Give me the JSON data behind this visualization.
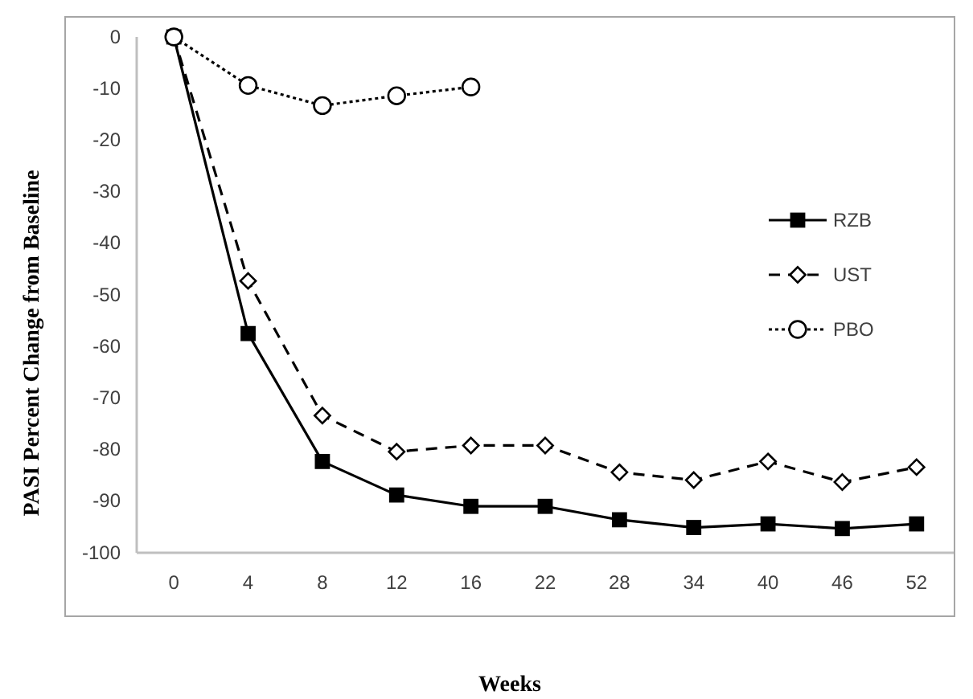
{
  "chart_data": {
    "type": "line",
    "xlabel": "Weeks",
    "ylabel": "PASI Percent Change from Baseline",
    "categories": [
      "0",
      "4",
      "8",
      "12",
      "16",
      "22",
      "28",
      "34",
      "40",
      "46",
      "52"
    ],
    "ylim": [
      -100,
      0
    ],
    "yticks": [
      0,
      -10,
      -20,
      -30,
      -40,
      -50,
      -60,
      -70,
      -80,
      -90,
      -100
    ],
    "grid": false,
    "legend": "right",
    "series": [
      {
        "name": "RZB",
        "color": "#000000",
        "marker": "square",
        "line_style": "solid",
        "values": [
          0,
          -57.5,
          -82.3,
          -88.8,
          -91,
          -91,
          -93.6,
          -95.1,
          -94.4,
          -95.3,
          -94.4
        ]
      },
      {
        "name": "UST",
        "color": "#000000",
        "marker": "diamond",
        "line_style": "dashed",
        "values": [
          0,
          -47.3,
          -73.4,
          -80.4,
          -79.2,
          -79.2,
          -84.4,
          -85.9,
          -82.3,
          -86.3,
          -83.4
        ]
      },
      {
        "name": "PBO",
        "color": "#000000",
        "marker": "circle",
        "line_style": "dotted",
        "values": [
          0,
          -9.4,
          -13.3,
          -11.4,
          -9.7,
          null,
          null,
          null,
          null,
          null,
          null
        ]
      }
    ]
  }
}
